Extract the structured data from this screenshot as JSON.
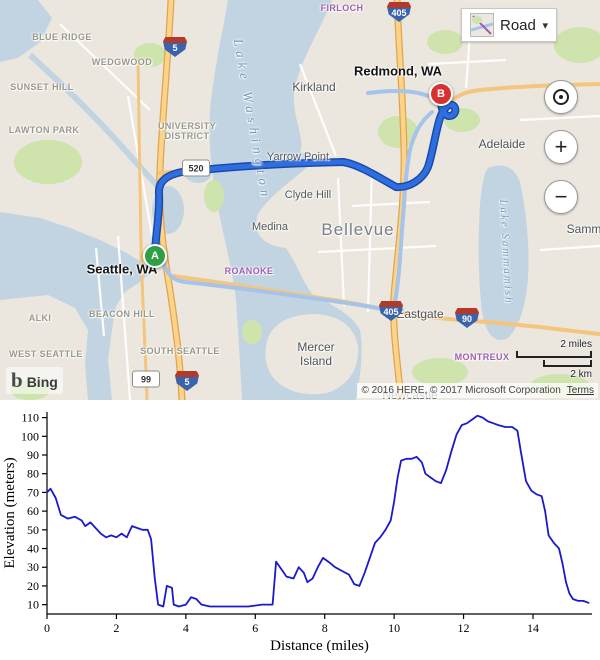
{
  "map": {
    "controls": {
      "style_label": "Road",
      "caret": "▾",
      "zoom_in": "+",
      "zoom_out": "−"
    },
    "markers": {
      "start": "A",
      "end": "B"
    },
    "labels": {
      "blue_ridge": "BLUE RIDGE",
      "wedgwood": "WEDGWOOD",
      "sunset_hill": "SUNSET HILL",
      "lawton_park": "LAWTON PARK",
      "university_district": "UNIVERSITY DISTRICT",
      "firloch": "FIRLOCH",
      "kirkland": "Kirkland",
      "redmond": "Redmond, WA",
      "adelaide": "Adelaide",
      "yarrow_point": "Yarrow Point",
      "clyde_hill": "Clyde Hill",
      "medina": "Medina",
      "bellevue": "Bellevue",
      "sammamish": "Sammamish",
      "seattle": "Seattle, WA",
      "roanoke": "ROANOKE",
      "beacon_hill": "BEACON HILL",
      "eastgate": "Eastgate",
      "alki": "ALKI",
      "west_seattle": "WEST SEATTLE",
      "south_seattle": "SOUTH SEATTLE",
      "mercer_island": "Mercer Island",
      "montreux": "MONTREUX",
      "newcastle": "Newcastle",
      "lake_washington": "Lake Washington",
      "lake_sammamish": "Lake Sammamish"
    },
    "shields": {
      "i405_top": "405",
      "i5_top": "5",
      "sr520": "520",
      "i405_south": "405",
      "i90": "90",
      "sr99": "99",
      "i5_south": "5"
    },
    "attribution": {
      "logo_b": "b",
      "logo_text": "Bing",
      "copyright": "© 2016 HERE, © 2017 Microsoft Corporation",
      "terms": "Terms",
      "scale_miles": "2 miles",
      "scale_km": "2 km"
    }
  },
  "chart_data": {
    "type": "line",
    "title": "",
    "xlabel": "Distance (miles)",
    "ylabel": "Elevation (meters)",
    "xlim": [
      0,
      15.7
    ],
    "ylim": [
      5,
      113
    ],
    "x_ticks": [
      0,
      2,
      4,
      6,
      8,
      10,
      12,
      14
    ],
    "y_ticks": [
      10,
      20,
      30,
      40,
      50,
      60,
      70,
      80,
      90,
      100,
      110
    ],
    "line_color": "#1a1acd",
    "legend": false,
    "grid": false,
    "series": [
      {
        "name": "elevation",
        "points": [
          [
            0,
            70
          ],
          [
            0.1,
            72
          ],
          [
            0.25,
            67
          ],
          [
            0.4,
            58
          ],
          [
            0.6,
            56
          ],
          [
            0.8,
            57
          ],
          [
            1.0,
            55
          ],
          [
            1.1,
            52
          ],
          [
            1.25,
            54
          ],
          [
            1.4,
            51
          ],
          [
            1.55,
            48
          ],
          [
            1.7,
            46
          ],
          [
            1.85,
            47
          ],
          [
            2.0,
            46
          ],
          [
            2.15,
            48
          ],
          [
            2.3,
            46
          ],
          [
            2.45,
            52
          ],
          [
            2.6,
            51
          ],
          [
            2.75,
            50
          ],
          [
            2.9,
            50
          ],
          [
            3.0,
            45
          ],
          [
            3.1,
            25
          ],
          [
            3.2,
            10
          ],
          [
            3.35,
            9
          ],
          [
            3.45,
            20
          ],
          [
            3.6,
            19
          ],
          [
            3.65,
            10
          ],
          [
            3.8,
            9
          ],
          [
            4.0,
            10
          ],
          [
            4.15,
            14
          ],
          [
            4.3,
            13
          ],
          [
            4.45,
            10
          ],
          [
            4.7,
            9
          ],
          [
            5.0,
            9
          ],
          [
            5.4,
            9
          ],
          [
            5.8,
            9
          ],
          [
            6.2,
            10
          ],
          [
            6.5,
            10
          ],
          [
            6.6,
            33
          ],
          [
            6.75,
            29
          ],
          [
            6.9,
            25
          ],
          [
            7.1,
            24
          ],
          [
            7.25,
            30
          ],
          [
            7.4,
            27
          ],
          [
            7.5,
            22
          ],
          [
            7.65,
            24
          ],
          [
            7.8,
            30
          ],
          [
            7.95,
            35
          ],
          [
            8.1,
            33
          ],
          [
            8.3,
            30
          ],
          [
            8.5,
            28
          ],
          [
            8.7,
            26
          ],
          [
            8.85,
            21
          ],
          [
            9.0,
            20
          ],
          [
            9.15,
            27
          ],
          [
            9.3,
            35
          ],
          [
            9.45,
            43
          ],
          [
            9.6,
            46
          ],
          [
            9.75,
            50
          ],
          [
            9.9,
            55
          ],
          [
            10.0,
            65
          ],
          [
            10.1,
            78
          ],
          [
            10.2,
            87
          ],
          [
            10.35,
            88
          ],
          [
            10.5,
            88
          ],
          [
            10.65,
            89
          ],
          [
            10.8,
            86
          ],
          [
            10.9,
            80
          ],
          [
            11.05,
            78
          ],
          [
            11.2,
            76
          ],
          [
            11.35,
            75
          ],
          [
            11.5,
            82
          ],
          [
            11.65,
            92
          ],
          [
            11.8,
            101
          ],
          [
            11.95,
            106
          ],
          [
            12.1,
            107
          ],
          [
            12.25,
            109
          ],
          [
            12.4,
            111
          ],
          [
            12.55,
            110
          ],
          [
            12.7,
            108
          ],
          [
            12.85,
            107
          ],
          [
            13.0,
            106
          ],
          [
            13.2,
            105
          ],
          [
            13.4,
            105
          ],
          [
            13.55,
            103
          ],
          [
            13.65,
            92
          ],
          [
            13.8,
            76
          ],
          [
            13.95,
            71
          ],
          [
            14.1,
            69
          ],
          [
            14.25,
            68
          ],
          [
            14.35,
            60
          ],
          [
            14.45,
            47
          ],
          [
            14.6,
            43
          ],
          [
            14.75,
            40
          ],
          [
            14.85,
            32
          ],
          [
            14.95,
            22
          ],
          [
            15.05,
            16
          ],
          [
            15.15,
            13
          ],
          [
            15.3,
            12
          ],
          [
            15.45,
            12
          ],
          [
            15.6,
            11
          ]
        ]
      }
    ]
  }
}
